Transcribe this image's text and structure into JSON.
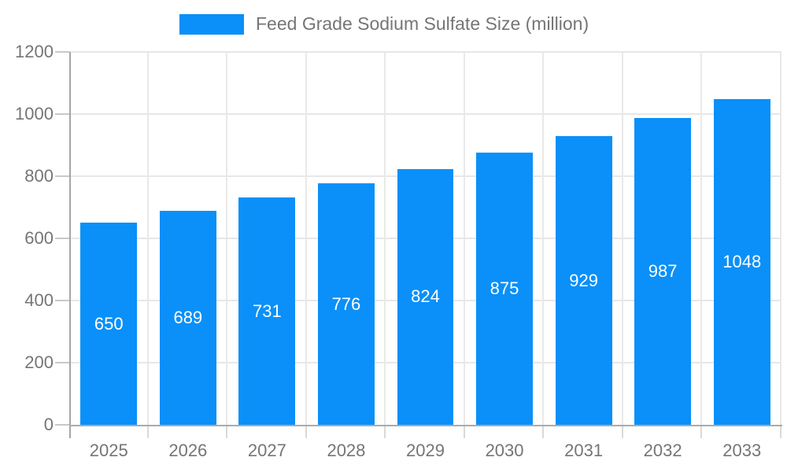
{
  "chart_data": {
    "type": "bar",
    "title": "Feed Grade Sodium Sulfate Size (million)",
    "categories": [
      "2025",
      "2026",
      "2027",
      "2028",
      "2029",
      "2030",
      "2031",
      "2032",
      "2033"
    ],
    "values": [
      650,
      689,
      731,
      776,
      824,
      875,
      929,
      987,
      1048
    ],
    "xlabel": "",
    "ylabel": "",
    "ylim": [
      0,
      1200
    ],
    "yticks": [
      0,
      200,
      400,
      600,
      800,
      1000,
      1200
    ],
    "grid": true,
    "legend_position": "top-center",
    "colors": {
      "bar": "#0a90f8",
      "bar_label_text": "#ffffff",
      "axis_text": "#757575",
      "legend_text": "#757575",
      "gridline": "#e7e7e7",
      "axis_line": "#a6a6a6",
      "background": "#ffffff"
    }
  }
}
